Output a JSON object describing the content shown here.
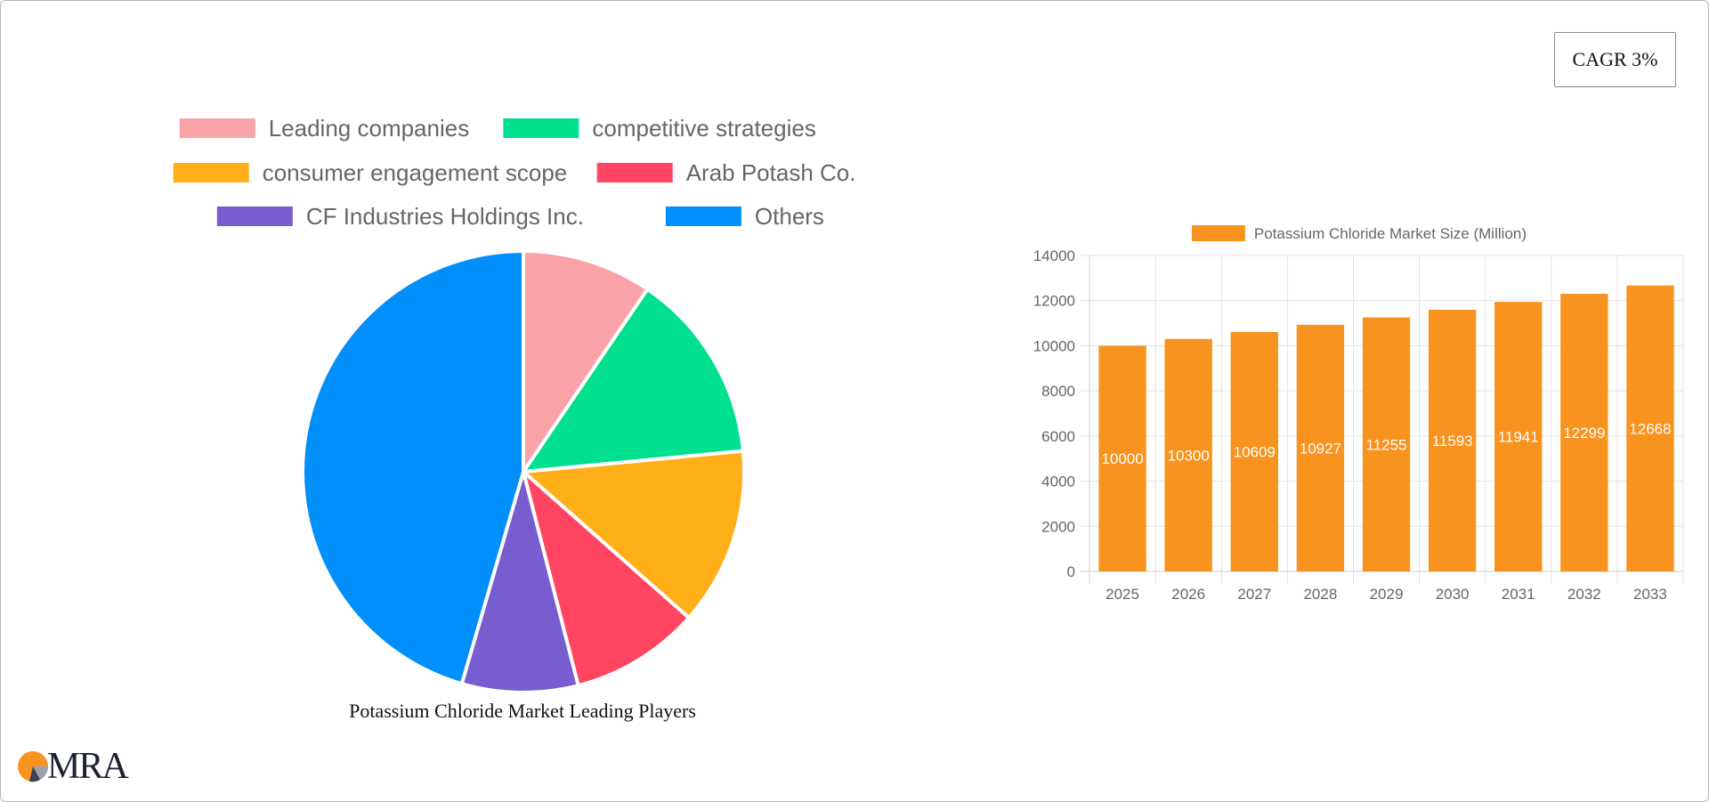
{
  "cagr_label": "CAGR 3%",
  "logo_text": "MRA",
  "colors": {
    "bar": "#f7931e",
    "slices": [
      "#f9a3a8",
      "#00e08f",
      "#ffaf18",
      "#ff4560",
      "#775dd0",
      "#008ffb"
    ]
  },
  "chart_data": [
    {
      "type": "pie",
      "title": "Potassium Chloride Market Leading Players",
      "legend_position": "top",
      "categories": [
        "Leading companies",
        "competitive strategies",
        "consumer engagement scope",
        "Arab Potash Co.",
        "CF Industries Holdings Inc.",
        "Others"
      ],
      "values": [
        9.5,
        14,
        13,
        9.5,
        8.5,
        45.5
      ]
    },
    {
      "type": "bar",
      "legend_position": "top",
      "series": [
        {
          "name": "Potassium Chloride Market Size (Million)",
          "values": [
            10000,
            10300,
            10609,
            10927,
            11255,
            11593,
            11941,
            12299,
            12668
          ]
        }
      ],
      "categories": [
        "2025",
        "2026",
        "2027",
        "2028",
        "2029",
        "2030",
        "2031",
        "2032",
        "2033"
      ],
      "ylim": [
        0,
        14000
      ],
      "yticks": [
        "0",
        "2000",
        "4000",
        "6000",
        "8000",
        "10000",
        "12000",
        "14000"
      ],
      "grid": true,
      "data_labels": true
    }
  ]
}
